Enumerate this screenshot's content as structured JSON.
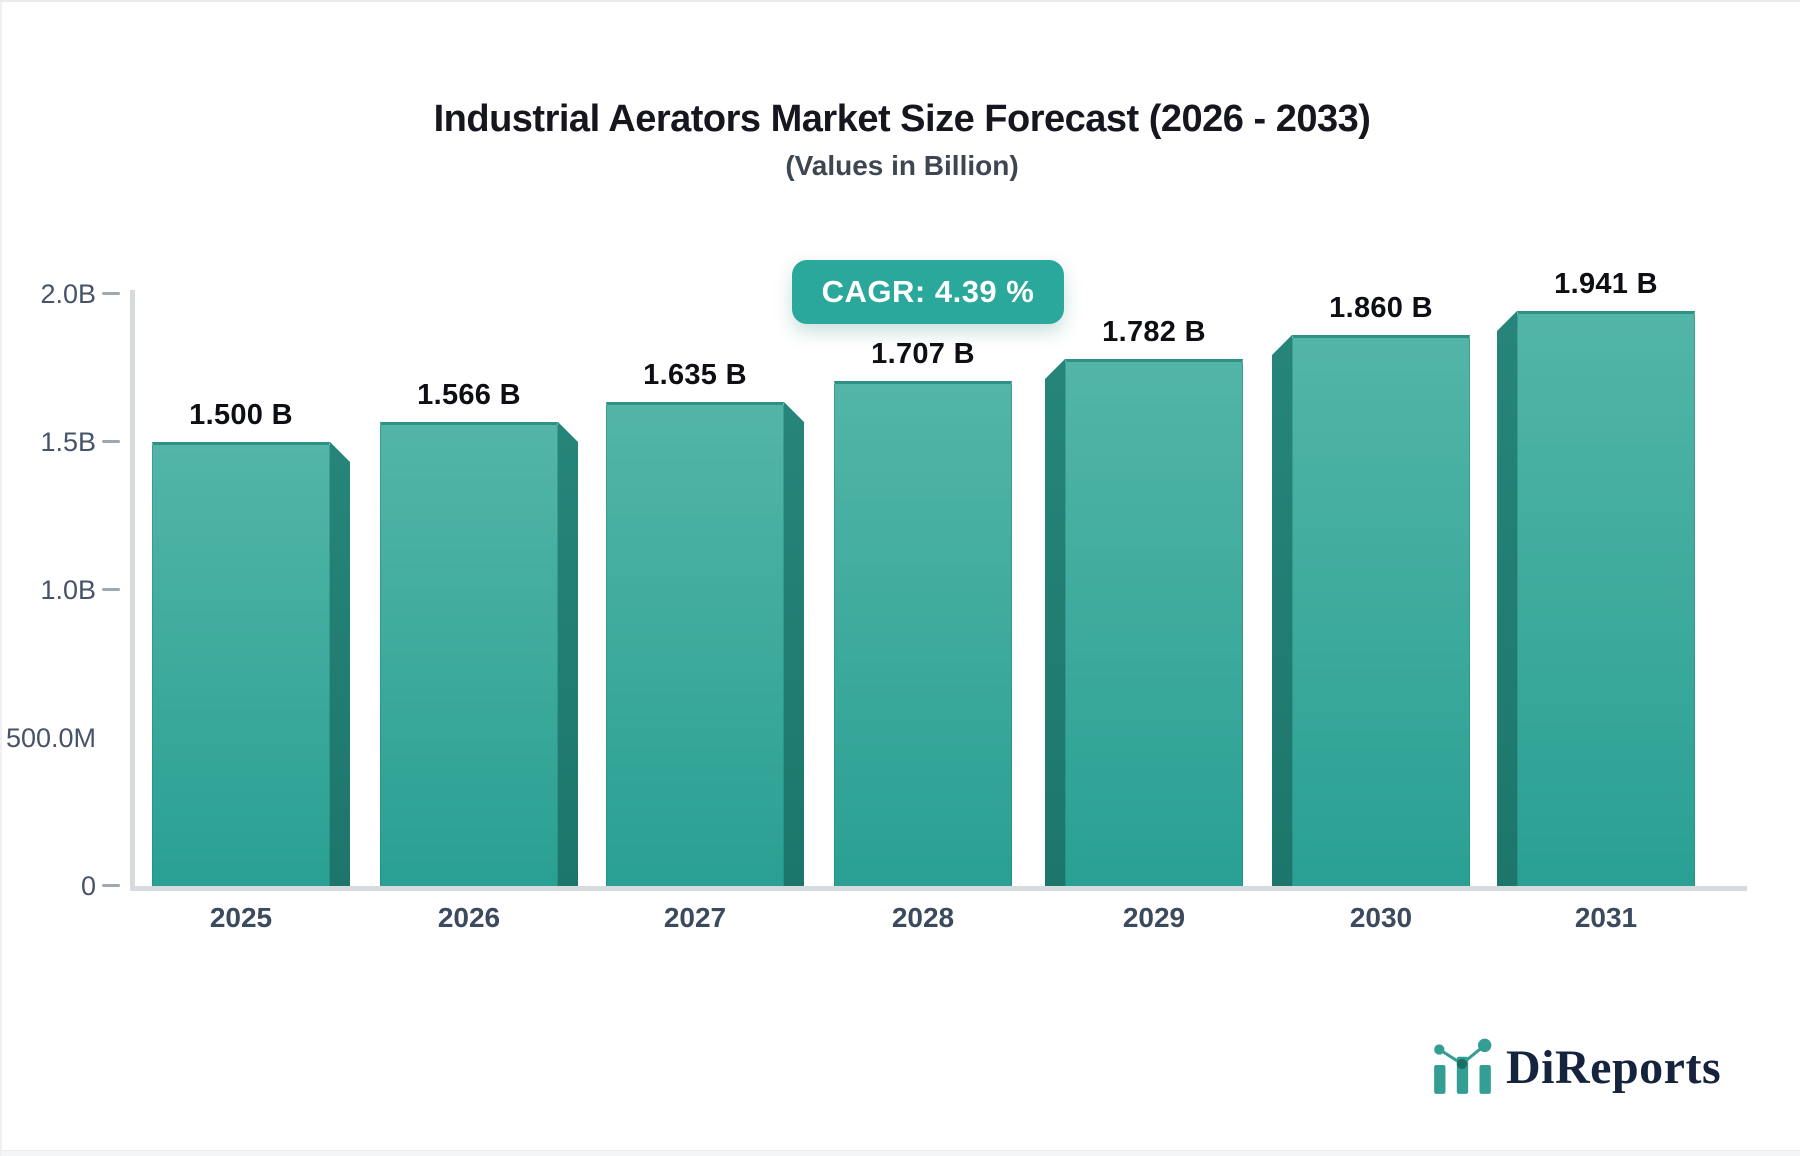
{
  "chart": {
    "title": "Industrial Aerators Market Size Forecast (2026 - 2033)",
    "subtitle": "(Values in Billion)",
    "cagr_badge": "CAGR: 4.39 %"
  },
  "chart_data": {
    "type": "bar",
    "title": "Industrial Aerators Market Size Forecast (2026 - 2033)",
    "subtitle": "(Values in Billion)",
    "categories": [
      "2025",
      "2026",
      "2027",
      "2028",
      "2029",
      "2030",
      "2031"
    ],
    "values": [
      1.5,
      1.566,
      1.635,
      1.707,
      1.782,
      1.86,
      1.941
    ],
    "value_labels": [
      "1.500 B",
      "1.566 B",
      "1.635 B",
      "1.707 B",
      "1.782 B",
      "1.860 B",
      "1.941 B"
    ],
    "cagr_percent": 4.39,
    "ylim": [
      0,
      2.0
    ],
    "yticks": [
      {
        "value": 2.0,
        "label": "2.0B",
        "dash": true
      },
      {
        "value": 1.5,
        "label": "1.5B",
        "dash": true
      },
      {
        "value": 1.0,
        "label": "1.0B",
        "dash": true
      },
      {
        "value": 0.5,
        "label": "500.0M",
        "dash": false
      },
      {
        "value": 0,
        "label": "0",
        "dash": true
      }
    ],
    "grid": false,
    "legend": false,
    "bar_style": "3d-beveled"
  },
  "branding": {
    "logo_text": "DiReports"
  },
  "colors": {
    "accent": "#2aa89c",
    "bar_top": "#52b5a7",
    "bar_bottom": "#29a093",
    "bar_edge": "#2e9186",
    "flank_top": "#26857a",
    "flank_bottom": "#1d766b",
    "axis_line": "#d8dbde",
    "dash": "#9fa7b0",
    "tick_text": "#46536a",
    "value_text": "#0d0f14",
    "year_text": "#3c4a5e",
    "title_text": "#16161e",
    "subtitle_text": "#3d4651",
    "logo_navy": "#16233c",
    "logo_teal": "#359e94"
  }
}
